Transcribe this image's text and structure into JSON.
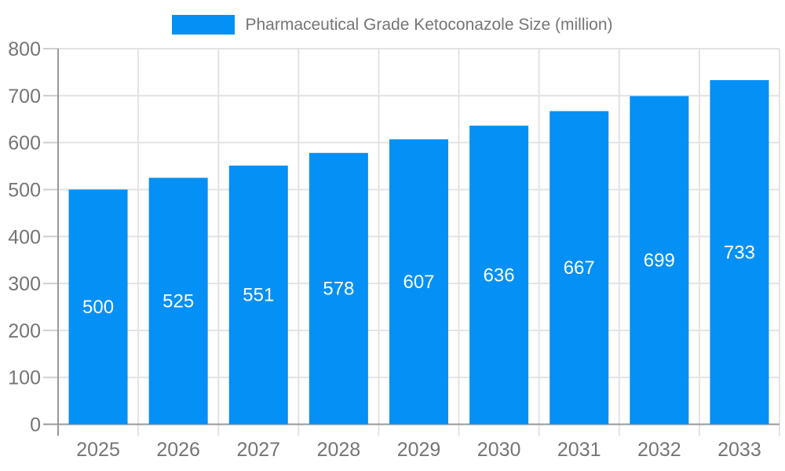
{
  "chart_data": {
    "type": "bar",
    "title": "Pharmaceutical Grade Ketoconazole Size (million)",
    "categories": [
      "2025",
      "2026",
      "2027",
      "2028",
      "2029",
      "2030",
      "2031",
      "2032",
      "2033"
    ],
    "values": [
      500,
      525,
      551,
      578,
      607,
      636,
      667,
      699,
      733
    ],
    "xlabel": "",
    "ylabel": "",
    "ylim": [
      0,
      800
    ],
    "ytick_step": 100,
    "yticks": [
      0,
      100,
      200,
      300,
      400,
      500,
      600,
      700,
      800
    ],
    "grid": true,
    "legend_position": "top-center",
    "value_label_position": "inside-middle",
    "colors": {
      "bar": "#0590f5",
      "value_label": "#ffffff",
      "axis_line": "#999999",
      "tick_line": "#cfcfcf",
      "grid_line": "#e3e3e3",
      "label_text": "#757575"
    }
  }
}
